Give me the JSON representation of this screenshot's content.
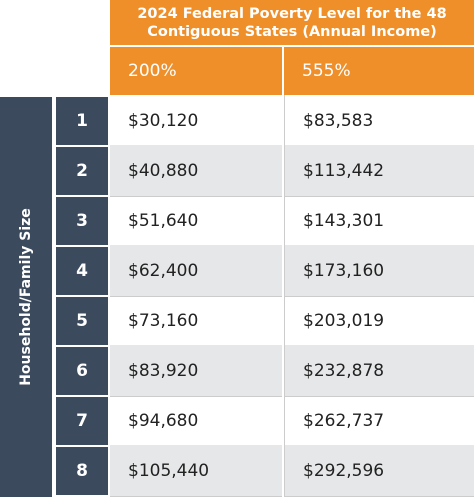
{
  "header": {
    "title": "2024 Federal Poverty Level for the 48 Contiguous States (Annual Income)",
    "columns": [
      "200%",
      "555%"
    ]
  },
  "table": {
    "row_label": "Household/Family Size",
    "rows": [
      [
        "1",
        "$30,120",
        "$83,583"
      ],
      [
        "2",
        "$40,880",
        "$113,442"
      ],
      [
        "3",
        "$51,640",
        "$143,301"
      ],
      [
        "4",
        "$62,400",
        "$173,160"
      ],
      [
        "5",
        "$73,160",
        "$203,019"
      ],
      [
        "6",
        "$83,920",
        "$232,878"
      ],
      [
        "7",
        "$94,680",
        "$262,737"
      ],
      [
        "8",
        "$105,440",
        "$292,596"
      ]
    ]
  }
}
